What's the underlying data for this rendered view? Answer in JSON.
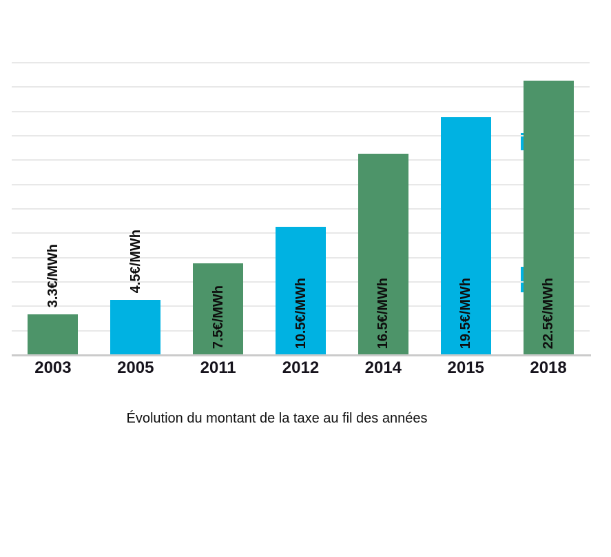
{
  "page": {
    "background": "#ffffff"
  },
  "chart_data": {
    "type": "bar",
    "title": "Évolution du montant de la taxe au fil des années",
    "categories": [
      "2003",
      "2005",
      "2011",
      "2012",
      "2014",
      "2015",
      "2018"
    ],
    "values": [
      3.3,
      4.5,
      7.5,
      10.5,
      16.5,
      19.5,
      22.5
    ],
    "bar_labels": [
      "3.3€/MWh",
      "4.5€/MWh",
      "7.5€/MWh",
      "10.5€/MWh",
      "16.5€/MWh",
      "19.5€/MWh",
      "22.5€/MWh"
    ],
    "bar_colors": [
      "#4d9469",
      "#00b2e2",
      "#4d9469",
      "#00b2e2",
      "#4d9469",
      "#00b2e2",
      "#4d9469"
    ],
    "value_label_placement": [
      "above",
      "above",
      "inside",
      "inside",
      "inside",
      "inside",
      "inside"
    ],
    "xlabel": "",
    "ylabel": "",
    "ylim": [
      0,
      24
    ],
    "gridline_step": 2,
    "grid": true,
    "legend": "none",
    "value_label_rotation": -90
  },
  "colors": {
    "green_bar": "#4d9469",
    "cyan_bar": "#00b2e2",
    "gridline": "#e8e8e8",
    "axis_line": "#cbcbcb",
    "label_text": "#0e0e0e"
  }
}
